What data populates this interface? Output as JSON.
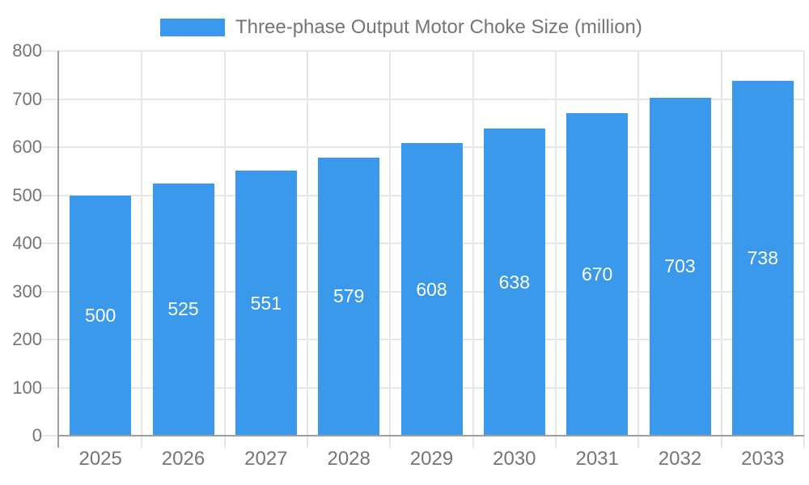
{
  "legend": {
    "label": "Three-phase Output Motor Choke Size (million)"
  },
  "chart_data": {
    "type": "bar",
    "title": "Three-phase Output Motor Choke Size (million)",
    "categories": [
      "2025",
      "2026",
      "2027",
      "2028",
      "2029",
      "2030",
      "2031",
      "2032",
      "2033"
    ],
    "values": [
      500,
      525,
      551,
      579,
      608,
      638,
      670,
      703,
      738
    ],
    "xlabel": "",
    "ylabel": "",
    "ylim": [
      0,
      800
    ],
    "yticks": [
      0,
      100,
      200,
      300,
      400,
      500,
      600,
      700,
      800
    ],
    "grid": true,
    "legend_position": "top-center",
    "value_label_position": "inside-center",
    "colors": {
      "bar": "#3b99eb",
      "grid": "#e7e7e7",
      "axis": "#9e9e9e",
      "text": "#757575",
      "value_label": "#ffffff",
      "background": "#ffffff"
    }
  }
}
